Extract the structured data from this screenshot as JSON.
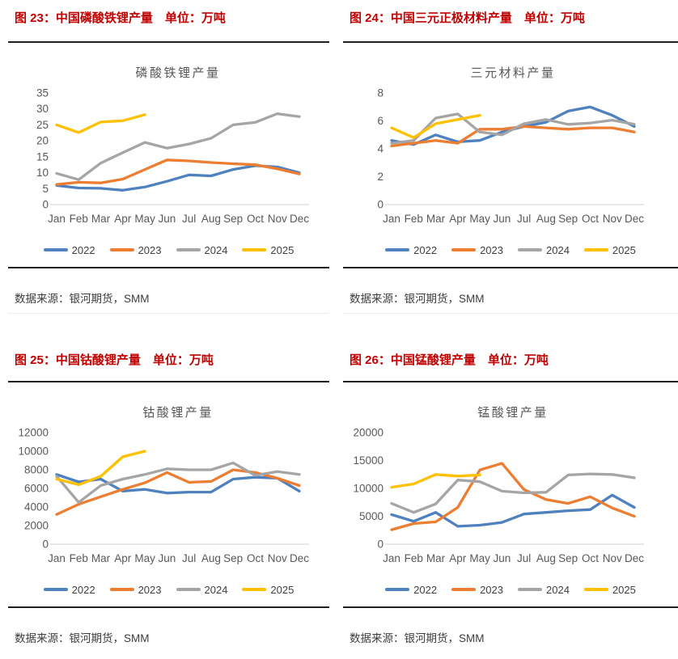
{
  "colors": {
    "caption_red": "#C00000",
    "axis_text": "#595959",
    "legend_text": "#404040",
    "axis_line": "#D9D9D9",
    "series_blue": "#4E81BD",
    "series_orange": "#ED7D31",
    "series_gray": "#A5A5A5",
    "series_yellow": "#FFC000"
  },
  "figures": [
    {
      "caption": "图 23：中国磷酸铁锂产量　单位：万吨",
      "source": "数据来源：银河期货，SMM"
    },
    {
      "caption": "图 24：中国三元正极材料产量　单位：万吨",
      "source": "数据来源：银河期货，SMM"
    },
    {
      "caption": "图 25：中国钴酸锂产量　单位：万吨",
      "source": "数据来源：银河期货，SMM"
    },
    {
      "caption": "图 26：中国锰酸锂产量　单位：万吨",
      "source": "数据来源：银河期货，SMM"
    }
  ],
  "chart_data": [
    {
      "type": "line",
      "title": "磷酸铁锂产量",
      "categories": [
        "Jan",
        "Feb",
        "Mar",
        "Apr",
        "May",
        "Jun",
        "Jul",
        "Aug",
        "Sep",
        "Oct",
        "Nov",
        "Dec"
      ],
      "series": [
        {
          "name": "2022",
          "color": "#4E81BD",
          "values": [
            6.0,
            5.2,
            5.1,
            4.5,
            5.5,
            7.3,
            9.3,
            9.0,
            11.0,
            12.2,
            11.8,
            10.0
          ]
        },
        {
          "name": "2023",
          "color": "#ED7D31",
          "values": [
            6.3,
            7.0,
            6.8,
            8.0,
            11.0,
            14.0,
            13.7,
            13.2,
            12.8,
            12.5,
            11.2,
            9.6
          ]
        },
        {
          "name": "2024",
          "color": "#A5A5A5",
          "values": [
            9.8,
            7.8,
            13.0,
            16.3,
            19.5,
            17.7,
            19.0,
            20.8,
            25.0,
            25.8,
            28.5,
            27.6
          ]
        },
        {
          "name": "2025",
          "color": "#FFC000",
          "values": [
            25.0,
            22.6,
            25.9,
            26.3,
            28.2
          ]
        }
      ],
      "ylim": [
        0,
        35
      ],
      "ytick_step": 5,
      "grid": false,
      "legend_position": "bottom"
    },
    {
      "type": "line",
      "title": "三元材料产量",
      "categories": [
        "Jan",
        "Feb",
        "Mar",
        "Apr",
        "May",
        "Jun",
        "Jul",
        "Aug",
        "Sep",
        "Oct",
        "Nov",
        "Dec"
      ],
      "series": [
        {
          "name": "2022",
          "color": "#4E81BD",
          "values": [
            4.6,
            4.3,
            5.0,
            4.5,
            4.6,
            5.2,
            5.6,
            5.9,
            6.7,
            7.0,
            6.4,
            5.6
          ]
        },
        {
          "name": "2023",
          "color": "#ED7D31",
          "values": [
            4.2,
            4.4,
            4.6,
            4.4,
            5.4,
            5.4,
            5.6,
            5.5,
            5.4,
            5.5,
            5.5,
            5.2
          ]
        },
        {
          "name": "2024",
          "color": "#A5A5A5",
          "values": [
            4.4,
            4.6,
            6.2,
            6.5,
            5.2,
            5.0,
            5.8,
            6.1,
            5.75,
            5.85,
            6.05,
            5.75
          ]
        },
        {
          "name": "2025",
          "color": "#FFC000",
          "values": [
            5.5,
            4.8,
            5.8,
            6.1,
            6.4
          ]
        }
      ],
      "ylim": [
        0,
        8
      ],
      "ytick_step": 2,
      "grid": false,
      "legend_position": "bottom"
    },
    {
      "type": "line",
      "title": "钴酸锂产量",
      "categories": [
        "Jan",
        "Feb",
        "Mar",
        "Apr",
        "May",
        "Jun",
        "Jul",
        "Aug",
        "Sep",
        "Oct",
        "Nov",
        "Dec"
      ],
      "series": [
        {
          "name": "2022",
          "color": "#4E81BD",
          "values": [
            7500,
            6700,
            7000,
            5700,
            5900,
            5500,
            5600,
            5600,
            7000,
            7200,
            7100,
            5700
          ]
        },
        {
          "name": "2023",
          "color": "#ED7D31",
          "values": [
            3200,
            4300,
            5100,
            5900,
            6600,
            7700,
            6650,
            6750,
            8000,
            7700,
            7100,
            6300
          ]
        },
        {
          "name": "2024",
          "color": "#A5A5A5",
          "values": [
            7300,
            4500,
            6300,
            7000,
            7500,
            8100,
            8000,
            8000,
            8750,
            7400,
            7800,
            7500
          ]
        },
        {
          "name": "2025",
          "color": "#FFC000",
          "values": [
            7000,
            6400,
            7300,
            9400,
            10000
          ]
        }
      ],
      "ylim": [
        0,
        12000
      ],
      "ytick_step": 2000,
      "grid": false,
      "legend_position": "bottom"
    },
    {
      "type": "line",
      "title": "锰酸锂产量",
      "categories": [
        "Jan",
        "Feb",
        "Mar",
        "Apr",
        "May",
        "Jun",
        "Jul",
        "Aug",
        "Sep",
        "Oct",
        "Nov",
        "Dec"
      ],
      "series": [
        {
          "name": "2022",
          "color": "#4E81BD",
          "values": [
            5300,
            4100,
            5700,
            3200,
            3400,
            3900,
            5400,
            5700,
            6000,
            6200,
            8800,
            6600
          ]
        },
        {
          "name": "2023",
          "color": "#ED7D31",
          "values": [
            2600,
            3700,
            4000,
            6600,
            13300,
            14500,
            9800,
            8000,
            7300,
            8500,
            6500,
            5000
          ]
        },
        {
          "name": "2024",
          "color": "#A5A5A5",
          "values": [
            7300,
            5700,
            7200,
            11500,
            11200,
            9500,
            9200,
            9300,
            12400,
            12600,
            12500,
            11900
          ]
        },
        {
          "name": "2025",
          "color": "#FFC000",
          "values": [
            10200,
            10800,
            12500,
            12200,
            12400
          ]
        }
      ],
      "ylim": [
        0,
        20000
      ],
      "ytick_step": 5000,
      "grid": false,
      "legend_position": "bottom"
    }
  ]
}
